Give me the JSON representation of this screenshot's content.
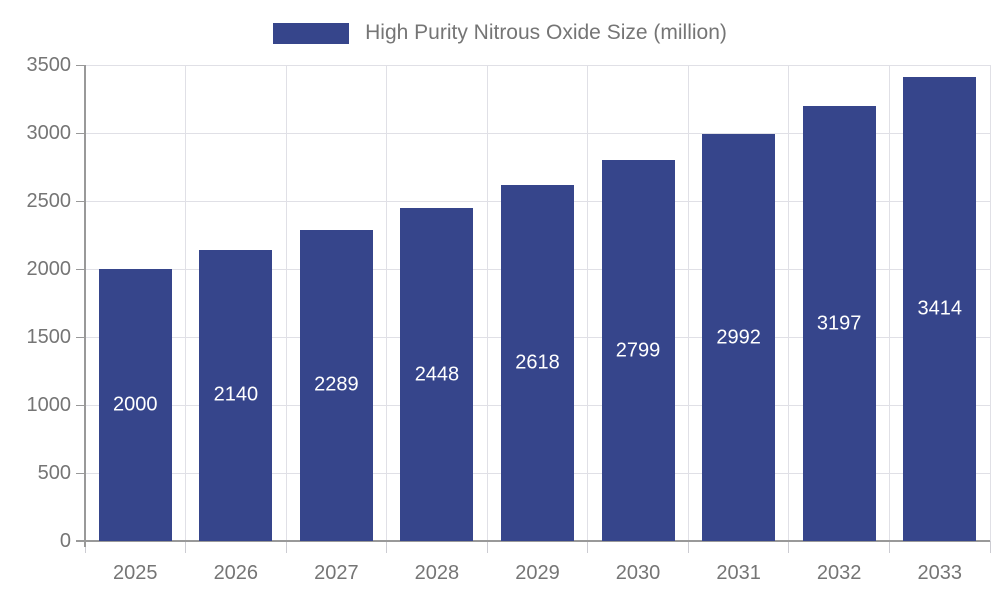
{
  "chart_data": {
    "type": "bar",
    "title": "High Purity Nitrous Oxide Size (million)",
    "categories": [
      "2025",
      "2026",
      "2027",
      "2028",
      "2029",
      "2030",
      "2031",
      "2032",
      "2033"
    ],
    "values": [
      2000,
      2140,
      2289,
      2448,
      2618,
      2799,
      2992,
      3197,
      3414
    ],
    "value_labels": [
      "2000",
      "2140",
      "2289",
      "2448",
      "2618",
      "2799",
      "2992",
      "3197",
      "3414"
    ],
    "xlabel": "",
    "ylabel": "",
    "ylim": [
      0,
      3500
    ],
    "yticks": [
      0,
      500,
      1000,
      1500,
      2000,
      2500,
      3000,
      3500
    ],
    "grid": true,
    "legend_position": "top-center",
    "colors": {
      "bar": "#36458B",
      "axis": "#999999",
      "grid": "#E0E0E6",
      "subtick": "#CCCCD2",
      "tick_label": "#757575",
      "value_label": "#FFFFFF",
      "legend_text": "#757575",
      "background": "#FFFFFF"
    }
  }
}
